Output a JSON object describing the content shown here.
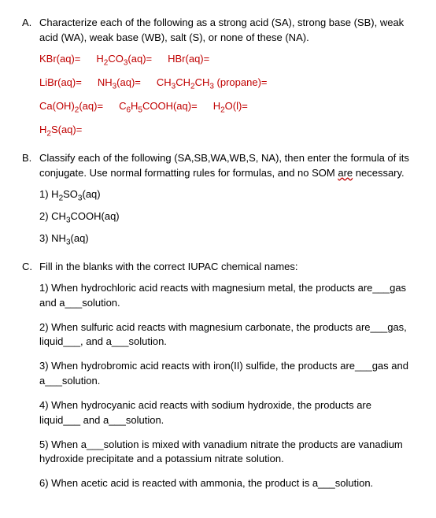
{
  "A": {
    "label": "A.",
    "prompt": "Characterize each of the following as a strong acid (SA), strong base (SB), weak acid (WA), weak base (WB), salt (S), or none of these (NA).",
    "lines": [
      [
        {
          "parts": [
            {
              "t": "KBr(aq)="
            }
          ]
        },
        {
          "parts": [
            {
              "t": "H"
            },
            {
              "t": "2",
              "sub": true
            },
            {
              "t": "CO"
            },
            {
              "t": "3",
              "sub": true
            },
            {
              "t": "(aq)="
            }
          ]
        },
        {
          "parts": [
            {
              "t": "HBr(aq)="
            }
          ]
        }
      ],
      [
        {
          "parts": [
            {
              "t": "LiBr(aq)="
            }
          ]
        },
        {
          "parts": [
            {
              "t": "NH"
            },
            {
              "t": "3",
              "sub": true
            },
            {
              "t": "(aq)="
            }
          ]
        },
        {
          "parts": [
            {
              "t": "CH"
            },
            {
              "t": "3",
              "sub": true
            },
            {
              "t": "CH"
            },
            {
              "t": "2",
              "sub": true
            },
            {
              "t": "CH"
            },
            {
              "t": "3",
              "sub": true
            },
            {
              "t": " (propane)="
            }
          ]
        }
      ],
      [
        {
          "parts": [
            {
              "t": "Ca(OH)"
            },
            {
              "t": "2",
              "sub": true
            },
            {
              "t": "(aq)="
            }
          ]
        },
        {
          "parts": [
            {
              "t": "C"
            },
            {
              "t": "6",
              "sub": true
            },
            {
              "t": "H"
            },
            {
              "t": "5",
              "sub": true
            },
            {
              "t": "COOH(aq)="
            }
          ]
        },
        {
          "parts": [
            {
              "t": "H"
            },
            {
              "t": "2",
              "sub": true
            },
            {
              "t": "O(l)="
            }
          ]
        }
      ],
      [
        {
          "parts": [
            {
              "t": "H"
            },
            {
              "t": "2",
              "sub": true
            },
            {
              "t": "S(aq)="
            }
          ]
        }
      ]
    ]
  },
  "B": {
    "label": "B.",
    "prompt_pre": "Classify each of the following (SA,SB,WA,WB,S, NA), then enter the formula of its conjugate. Use normal formatting rules for formulas, and no SOM ",
    "prompt_wavy": "are",
    "prompt_post": " necessary.",
    "items": [
      {
        "parts": [
          {
            "t": "1) H"
          },
          {
            "t": "2",
            "sub": true
          },
          {
            "t": "SO"
          },
          {
            "t": "3",
            "sub": true
          },
          {
            "t": "(aq)"
          }
        ]
      },
      {
        "parts": [
          {
            "t": "2) CH"
          },
          {
            "t": "3",
            "sub": true
          },
          {
            "t": "COOH(aq)"
          }
        ]
      },
      {
        "parts": [
          {
            "t": "3) NH"
          },
          {
            "t": "3",
            "sub": true
          },
          {
            "t": "(aq)"
          }
        ]
      }
    ]
  },
  "C": {
    "label": "C.",
    "prompt": "Fill in the blanks with the correct IUPAC chemical names:",
    "items": [
      "1) When hydrochloric acid reacts with magnesium metal, the products are___gas and a___solution.",
      "2) When sulfuric acid reacts with magnesium carbonate, the products are___gas, liquid___, and a___solution.",
      "3) When hydrobromic acid reacts with iron(II) sulfide, the products are___gas and a___solution.",
      "4) When hydrocyanic acid reacts with sodium hydroxide, the products are liquid___ and a___solution.",
      "5) When a___solution is mixed with vanadium nitrate the products are vanadium hydroxide precipitate and a potassium nitrate solution.",
      "6) When acetic acid is reacted with ammonia, the product is a___solution."
    ]
  }
}
